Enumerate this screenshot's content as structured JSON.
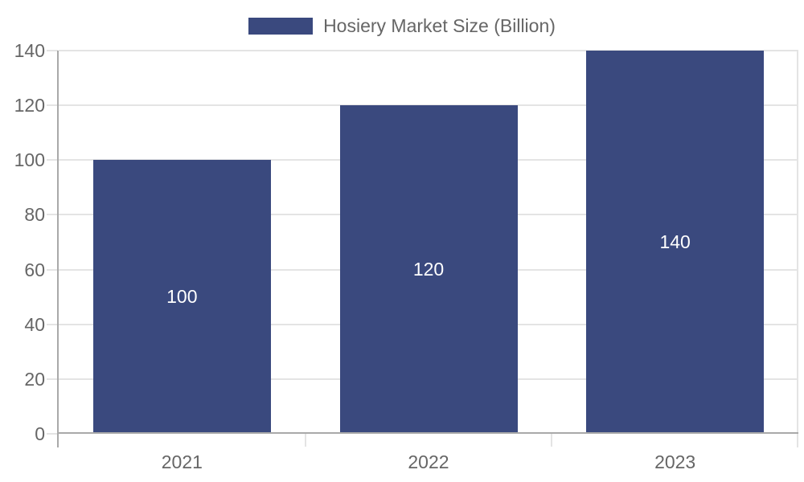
{
  "chart_data": {
    "type": "bar",
    "title": "Hosiery Market Size (Billion)",
    "legend": [
      "Hosiery Market Size (Billion)"
    ],
    "legend_position": "top-center",
    "categories": [
      "2021",
      "2022",
      "2023"
    ],
    "values": [
      100,
      120,
      140
    ],
    "value_labels": [
      "100",
      "120",
      "140"
    ],
    "xlabel": "",
    "ylabel": "",
    "ylim": [
      0,
      140
    ],
    "yticks": [
      0,
      20,
      40,
      60,
      80,
      100,
      120,
      140
    ],
    "grid": true,
    "colors": {
      "bar": "#3A497E",
      "grid": "#e4e4e4",
      "axis": "#a9a9a9",
      "tick_label": "#666666",
      "legend_text": "#666666",
      "value_label": "#ffffff",
      "background": "#ffffff"
    }
  }
}
